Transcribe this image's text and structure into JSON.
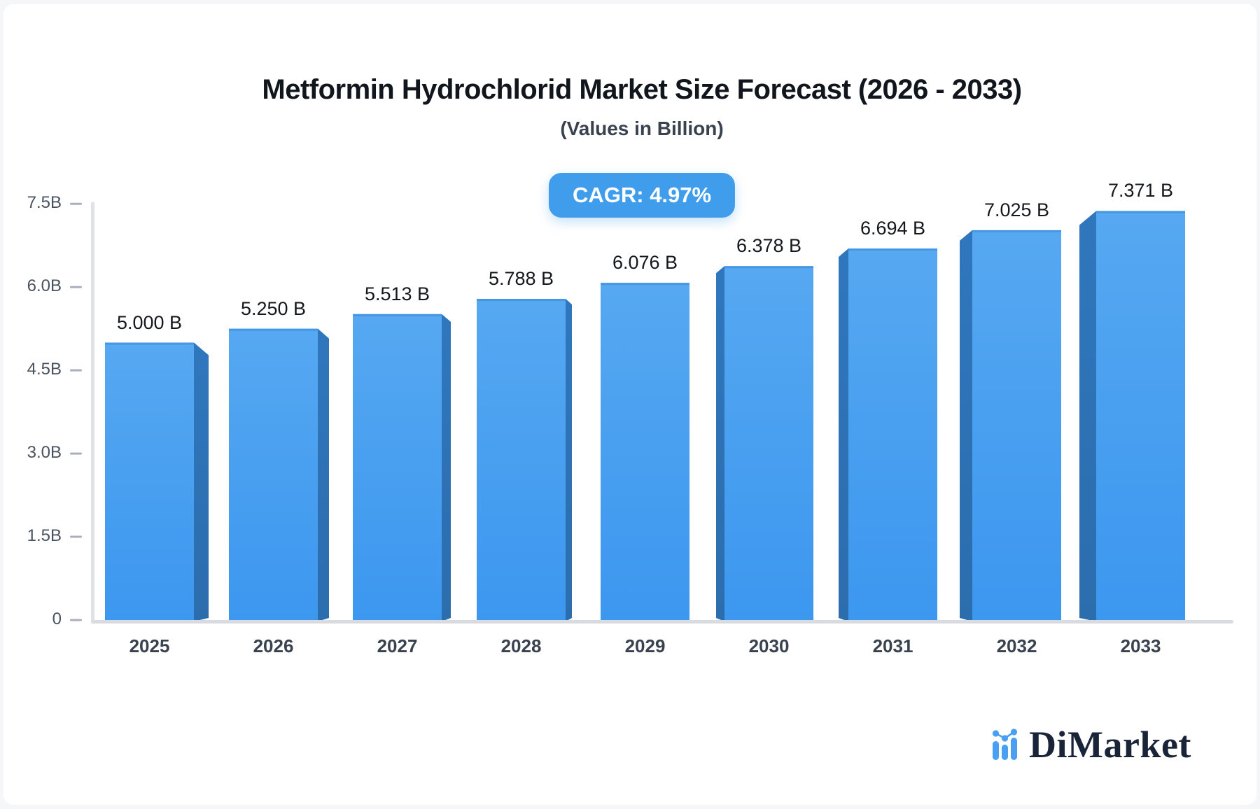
{
  "chart_data": {
    "type": "bar",
    "title": "Metformin Hydrochlorid Market Size Forecast (2026 - 2033)",
    "subtitle": "(Values in Billion)",
    "cagr_label": "CAGR: 4.97%",
    "categories": [
      "2025",
      "2026",
      "2027",
      "2028",
      "2029",
      "2030",
      "2031",
      "2032",
      "2033"
    ],
    "values": [
      5.0,
      5.25,
      5.513,
      5.788,
      6.076,
      6.378,
      6.694,
      7.025,
      7.371
    ],
    "value_labels": [
      "5.000 B",
      "5.250 B",
      "5.513 B",
      "5.788 B",
      "6.076 B",
      "6.378 B",
      "6.694 B",
      "7.025 B",
      "7.371 B"
    ],
    "unit": "Billion",
    "ylim": [
      0,
      7.5
    ],
    "yticks": [
      {
        "value": 0,
        "label": "0"
      },
      {
        "value": 1.5,
        "label": "1.5B"
      },
      {
        "value": 3.0,
        "label": "3.0B"
      },
      {
        "value": 4.5,
        "label": "4.5B"
      },
      {
        "value": 6.0,
        "label": "6.0B"
      },
      {
        "value": 7.5,
        "label": "7.5B"
      }
    ],
    "grid": false,
    "legend_position": "none",
    "colors": {
      "bar_front_top": "#56a8f1",
      "bar_front_bottom": "#3c97ef",
      "bar_side_top": "#2f77bd",
      "bar_side_bottom": "#2c6dad",
      "bar_top_edge": "#4090dd",
      "axis_line": "#dfe2e7",
      "baseline": "#d8dce1",
      "tick_dash": "#a9b0ba",
      "badge_bg": "#3f9dec"
    }
  },
  "branding": {
    "logo_text": "DiMarket",
    "logo_icon": "mini-bar-line-chart-icon",
    "logo_text_color": "#1a2438",
    "logo_icon_color": "#4aa0f0"
  }
}
